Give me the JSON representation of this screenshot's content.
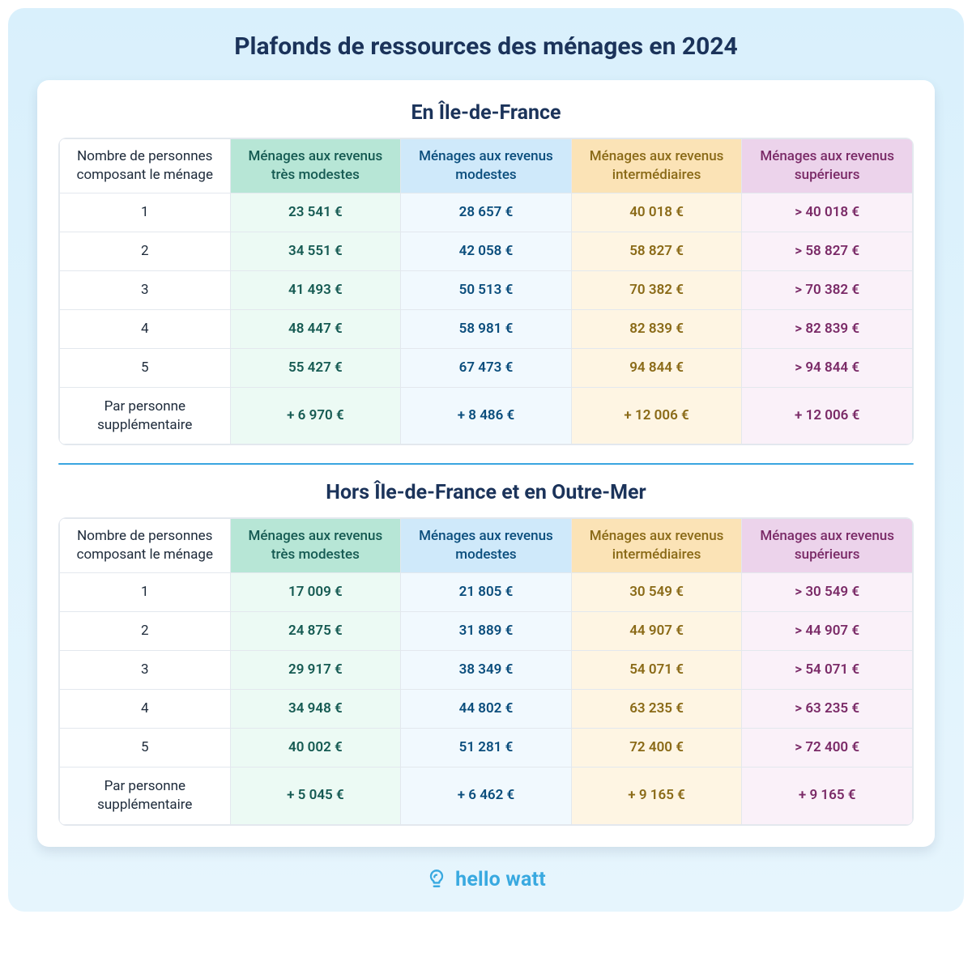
{
  "title": "Plafonds de ressources des ménages en 2024",
  "logo": {
    "text": "hello watt",
    "icon_color": "#39a9e0",
    "text_color": "#39a9e0"
  },
  "columns": {
    "c0": {
      "label": "Nombre de personnes composant le ménage",
      "header_bg": "#ffffff",
      "body_bg": "#ffffff",
      "text_color": "#1d2a3a"
    },
    "c1": {
      "label": "Ménages aux revenus très modestes",
      "header_bg": "#b7e6d6",
      "body_bg": "#ecfaf4",
      "text_color": "#155a52"
    },
    "c2": {
      "label": "Ménages aux revenus modestes",
      "header_bg": "#cfe9fa",
      "body_bg": "#f1f9fe",
      "text_color": "#0a4d7c"
    },
    "c3": {
      "label": "Ménages aux revenus intermédiaires",
      "header_bg": "#fbe3b6",
      "body_bg": "#fef5e3",
      "text_color": "#8a6a17"
    },
    "c4": {
      "label": "Ménages aux revenus supérieurs",
      "header_bg": "#ecd3eb",
      "body_bg": "#faf1f9",
      "text_color": "#7a2a67"
    }
  },
  "row_labels": [
    "1",
    "2",
    "3",
    "4",
    "5",
    "Par personne supplémentaire"
  ],
  "sections": [
    {
      "title": "En Île-de-France",
      "rows": [
        [
          "23 541 €",
          "28 657 €",
          "40 018 €",
          "> 40 018 €"
        ],
        [
          "34 551 €",
          "42 058 €",
          "58 827 €",
          "> 58 827 €"
        ],
        [
          "41 493 €",
          "50 513 €",
          "70 382 €",
          "> 70 382 €"
        ],
        [
          "48 447 €",
          "58 981 €",
          "82 839 €",
          "> 82 839 €"
        ],
        [
          "55 427 €",
          "67 473 €",
          "94 844 €",
          "> 94 844 €"
        ],
        [
          "+ 6 970 €",
          "+ 8 486 €",
          "+ 12 006 €",
          "+ 12 006 €"
        ]
      ]
    },
    {
      "title": "Hors Île-de-France et en Outre-Mer",
      "rows": [
        [
          "17 009 €",
          "21 805 €",
          "30 549 €",
          "> 30 549 €"
        ],
        [
          "24 875 €",
          "31 889 €",
          "44 907 €",
          "> 44 907 €"
        ],
        [
          "29 917 €",
          "38 349 €",
          "54 071 €",
          "> 54 071 €"
        ],
        [
          "34 948 €",
          "44 802 €",
          "63 235 €",
          "> 63 235 €"
        ],
        [
          "40 002 €",
          "51 281 €",
          "72 400 €",
          "> 72 400 €"
        ],
        [
          "+ 5 045 €",
          "+ 6 462 €",
          "+ 9 165 €",
          "+ 9 165 €"
        ]
      ]
    }
  ]
}
